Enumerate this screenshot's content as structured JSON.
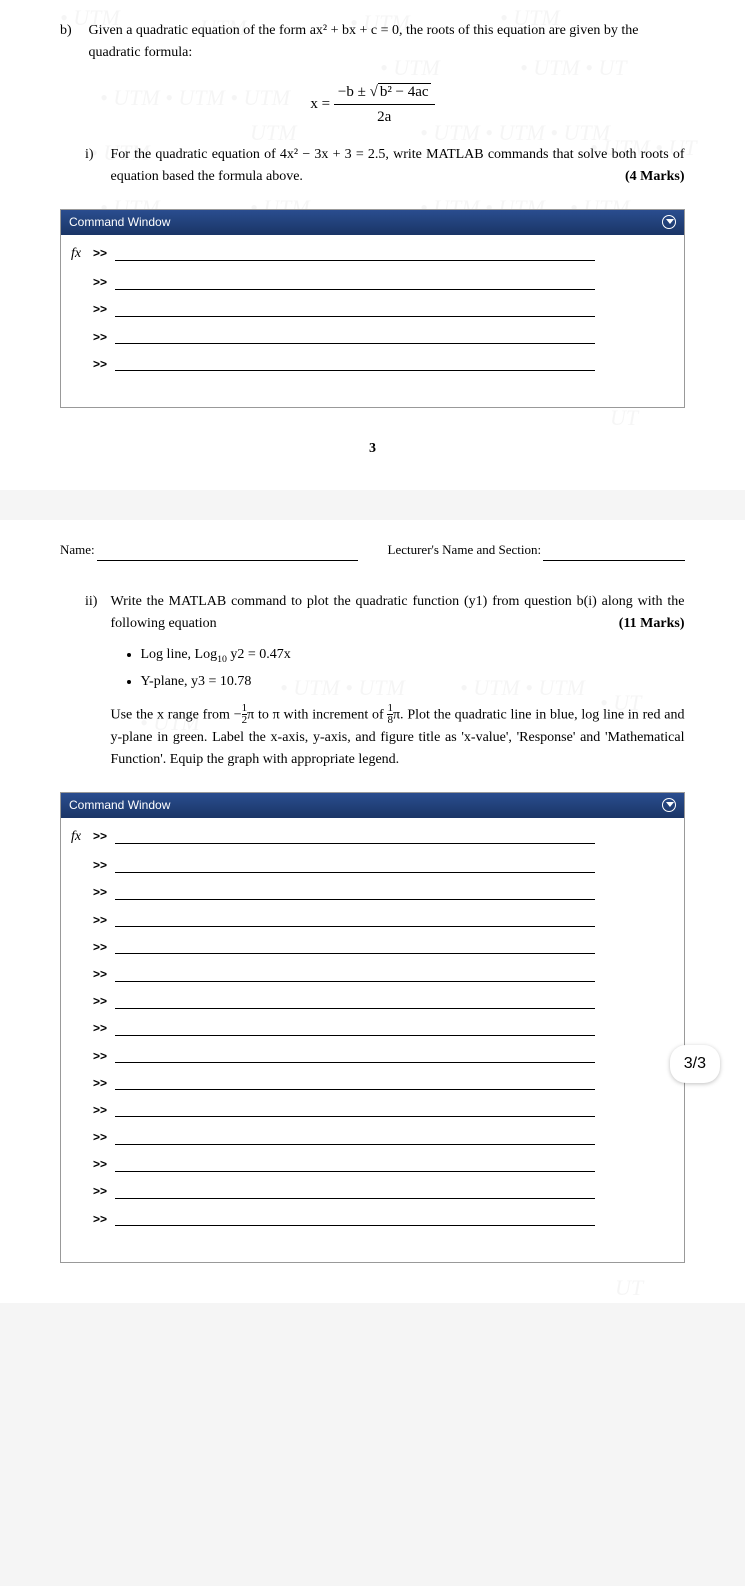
{
  "watermark_text": "UTM",
  "colors": {
    "cmd_header_bg": "#1f3f7a",
    "page_bg": "#ffffff",
    "body_bg": "#f5f5f5",
    "text": "#000000"
  },
  "page1": {
    "b_label": "b)",
    "b_text": "Given a quadratic equation of the form ax² + bx + c = 0, the roots of this equation are given by the quadratic formula:",
    "formula": {
      "lhs": "x =",
      "numerator": "−b ± √(b² − 4ac)",
      "denominator": "2a"
    },
    "i_label": "i)",
    "i_text": "For the quadratic equation of 4x² − 3x + 3 = 2.5, write MATLAB commands that solve both roots of equation based the formula above.",
    "i_marks": "(4 Marks)",
    "cmd_title": "Command Window",
    "fx_label": "fx",
    "prompt": ">>",
    "cmd_lines": 5,
    "page_number": "3"
  },
  "page2": {
    "name_label": "Name:",
    "lecturer_label": "Lecturer's Name and Section:",
    "ii_label": "ii)",
    "ii_text": "Write the MATLAB command to plot the quadratic function (y1) from question b(i) along with the following equation",
    "ii_marks": "(11 Marks)",
    "bullets": [
      "Log line, Log₁₀ y2 = 0.47x",
      "Y-plane, y3 = 10.78"
    ],
    "range_text_pre": "Use the x range from −",
    "range_frac1_n": "1",
    "range_frac1_d": "2",
    "range_text_mid1": "π to π with increment of ",
    "range_frac2_n": "1",
    "range_frac2_d": "8",
    "range_text_mid2": "π. Plot the quadratic line in blue, log line in red and y-plane in green. Label the x-axis, y-axis, and figure title as 'x-value', 'Response' and 'Mathematical Function'. Equip the graph with appropriate legend.",
    "cmd_title": "Command Window",
    "cmd_lines": 15,
    "page_badge": "3/3"
  }
}
